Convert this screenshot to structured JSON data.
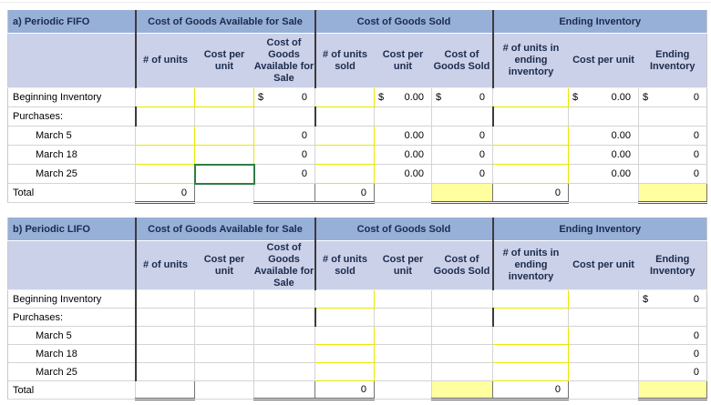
{
  "colors": {
    "group_header_bg": "#97b0d8",
    "column_header_bg": "#cbd1e8",
    "header_text": "#1b2b4d",
    "input_cell_border": "#e8e800",
    "selected_cell_border": "#2f7e46",
    "answer_cell_fill": "#ffffa0",
    "total_border": "#595959",
    "group_divider": "#3c3c3c",
    "gridline": "#d4d4d4"
  },
  "tables": [
    {
      "title": "a) Periodic FIFO",
      "groups": [
        "Cost of Goods Available for Sale",
        "Cost of Goods Sold",
        "Ending Inventory"
      ],
      "col_headers": [
        "# of units",
        "Cost per unit",
        "Cost of Goods Available for Sale",
        "# of units sold",
        "Cost per unit",
        "Cost of Goods Sold",
        "# of units in ending inventory",
        "Cost per unit",
        "Ending Inventory"
      ],
      "rows": [
        {
          "label": "Beginning Inventory",
          "indent": false,
          "cells": [
            {
              "t": "in"
            },
            {
              "t": "in"
            },
            {
              "t": "d",
              "p": "$",
              "v": "0"
            },
            {
              "t": "in"
            },
            {
              "t": "d",
              "p": "$",
              "v": "0.00"
            },
            {
              "t": "d",
              "p": "$",
              "v": "0"
            },
            {
              "t": "in"
            },
            {
              "t": "d",
              "p": "$",
              "v": "0.00"
            },
            {
              "t": "d",
              "p": "$",
              "v": "0"
            }
          ]
        },
        {
          "label": "Purchases:",
          "indent": false,
          "cells": [
            {
              "t": ""
            },
            {
              "t": ""
            },
            {
              "t": ""
            },
            {
              "t": ""
            },
            {
              "t": ""
            },
            {
              "t": ""
            },
            {
              "t": ""
            },
            {
              "t": ""
            },
            {
              "t": ""
            }
          ]
        },
        {
          "label": "March 5",
          "indent": true,
          "cells": [
            {
              "t": "in"
            },
            {
              "t": "in"
            },
            {
              "t": "d",
              "v": "0"
            },
            {
              "t": "in"
            },
            {
              "t": "d",
              "v": "0.00"
            },
            {
              "t": "d",
              "v": "0"
            },
            {
              "t": "in"
            },
            {
              "t": "d",
              "v": "0.00"
            },
            {
              "t": "d",
              "v": "0"
            }
          ]
        },
        {
          "label": "March 18",
          "indent": true,
          "cells": [
            {
              "t": "in"
            },
            {
              "t": "in"
            },
            {
              "t": "d",
              "v": "0"
            },
            {
              "t": "in"
            },
            {
              "t": "d",
              "v": "0.00"
            },
            {
              "t": "d",
              "v": "0"
            },
            {
              "t": "in"
            },
            {
              "t": "d",
              "v": "0.00"
            },
            {
              "t": "d",
              "v": "0"
            }
          ]
        },
        {
          "label": "March 25",
          "indent": true,
          "cells": [
            {
              "t": "in"
            },
            {
              "t": "sel"
            },
            {
              "t": "d",
              "v": "0"
            },
            {
              "t": "in"
            },
            {
              "t": "d",
              "v": "0.00"
            },
            {
              "t": "d",
              "v": "0"
            },
            {
              "t": "in"
            },
            {
              "t": "d",
              "v": "0.00"
            },
            {
              "t": "d",
              "v": "0"
            }
          ]
        },
        {
          "label": "Total",
          "indent": false,
          "cells": [
            {
              "t": "tv",
              "v": "0"
            },
            {
              "t": ""
            },
            {
              "t": "tb"
            },
            {
              "t": "tv",
              "v": "0"
            },
            {
              "t": ""
            },
            {
              "t": "tf"
            },
            {
              "t": "tv",
              "v": "0"
            },
            {
              "t": ""
            },
            {
              "t": "tf"
            }
          ]
        }
      ]
    },
    {
      "title": "b) Periodic LIFO",
      "groups": [
        "Cost of Goods Available for Sale",
        "Cost of Goods Sold",
        "Ending Inventory"
      ],
      "col_headers": [
        "# of units",
        "Cost per unit",
        "Cost of Goods Available for Sale",
        "# of units sold",
        "Cost per unit",
        "Cost of Goods Sold",
        "# of units in ending inventory",
        "Cost per unit",
        "Ending Inventory"
      ],
      "rows": [
        {
          "label": "Beginning Inventory",
          "indent": false,
          "cells": [
            {
              "t": ""
            },
            {
              "t": ""
            },
            {
              "t": ""
            },
            {
              "t": "in"
            },
            {
              "t": ""
            },
            {
              "t": ""
            },
            {
              "t": "in"
            },
            {
              "t": ""
            },
            {
              "t": "d",
              "p": "$",
              "v": "0"
            }
          ]
        },
        {
          "label": "Purchases:",
          "indent": false,
          "cells": [
            {
              "t": ""
            },
            {
              "t": ""
            },
            {
              "t": ""
            },
            {
              "t": ""
            },
            {
              "t": ""
            },
            {
              "t": ""
            },
            {
              "t": ""
            },
            {
              "t": ""
            },
            {
              "t": ""
            }
          ]
        },
        {
          "label": "March 5",
          "indent": true,
          "cells": [
            {
              "t": ""
            },
            {
              "t": ""
            },
            {
              "t": ""
            },
            {
              "t": "in"
            },
            {
              "t": ""
            },
            {
              "t": ""
            },
            {
              "t": "in"
            },
            {
              "t": ""
            },
            {
              "t": "d",
              "v": "0"
            }
          ]
        },
        {
          "label": "March 18",
          "indent": true,
          "cells": [
            {
              "t": ""
            },
            {
              "t": ""
            },
            {
              "t": ""
            },
            {
              "t": "in"
            },
            {
              "t": ""
            },
            {
              "t": ""
            },
            {
              "t": "in"
            },
            {
              "t": ""
            },
            {
              "t": "d",
              "v": "0"
            }
          ]
        },
        {
          "label": "March 25",
          "indent": true,
          "cells": [
            {
              "t": ""
            },
            {
              "t": ""
            },
            {
              "t": ""
            },
            {
              "t": "in"
            },
            {
              "t": ""
            },
            {
              "t": ""
            },
            {
              "t": "in"
            },
            {
              "t": ""
            },
            {
              "t": "d",
              "v": "0"
            }
          ]
        },
        {
          "label": "Total",
          "indent": false,
          "cells": [
            {
              "t": "tb"
            },
            {
              "t": ""
            },
            {
              "t": "tb"
            },
            {
              "t": "tv",
              "v": "0"
            },
            {
              "t": ""
            },
            {
              "t": "tf"
            },
            {
              "t": "tv",
              "v": "0"
            },
            {
              "t": ""
            },
            {
              "t": "tf"
            }
          ]
        }
      ]
    }
  ]
}
